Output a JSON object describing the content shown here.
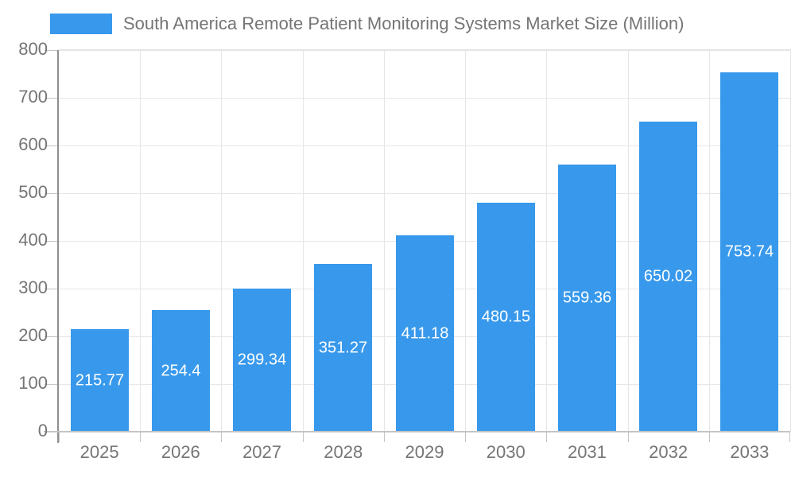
{
  "chart_data": {
    "type": "bar",
    "title": "South America Remote Patient Monitoring Systems Market Size (Million)",
    "legend_position": "top",
    "categories": [
      "2025",
      "2026",
      "2027",
      "2028",
      "2029",
      "2030",
      "2031",
      "2032",
      "2033"
    ],
    "series": [
      {
        "name": "South America Remote Patient Monitoring Systems Market Size (Million)",
        "values": [
          215.77,
          254.4,
          299.34,
          351.27,
          411.18,
          480.15,
          559.36,
          650.02,
          753.74
        ],
        "value_labels": [
          "215.77",
          "254.4",
          "299.34",
          "351.27",
          "411.18",
          "480.15",
          "559.36",
          "650.02",
          "753.74"
        ]
      }
    ],
    "xlabel": "",
    "ylabel": "",
    "ylim": [
      0,
      800
    ],
    "ytick_step": 100,
    "ytick_labels": [
      "0",
      "100",
      "200",
      "300",
      "400",
      "500",
      "600",
      "700",
      "800"
    ],
    "grid": true,
    "colors": {
      "bar": "#3899EC",
      "value_label": "#ffffff",
      "axis_label": "#757575",
      "gridline": "#e6e6e6",
      "y_axis_line": "#8f8f8f",
      "x_axis_line": "#c4c4c4"
    }
  }
}
